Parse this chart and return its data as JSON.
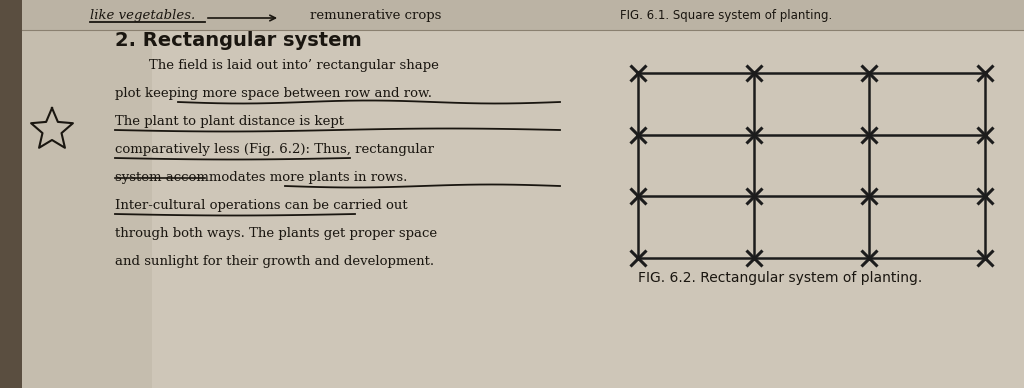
{
  "bg_color": "#7a6a5a",
  "page_color_left": "#c8bfb0",
  "page_color_right": "#d4cdc2",
  "fig_title": "FIG. 6.1. Square system of planting.",
  "fig2_title": "FIG. 6.2. Rectangular system of planting.",
  "section_title": "2. Rectangular system",
  "line1": "        The field is laid out into’ rectangular shape",
  "line2": "plot keeping more space between row and row.",
  "line3": "The plant to plant distance is kept",
  "line4": "comparatively less (Fig. 6.2): Thus, rectangular",
  "line5": "system accommodates more plants in rows.",
  "line6": "Inter-cultural operations can be carried out",
  "line7": "through both ways. The plants get proper space",
  "line8": "and sunlight for their growth and development.",
  "top_text_left": "like vegetables.",
  "top_text_right": "remunerative crops",
  "line_color": "#1c1c1c",
  "text_color": "#1a1610",
  "grid_rows": 4,
  "grid_cols": 4
}
